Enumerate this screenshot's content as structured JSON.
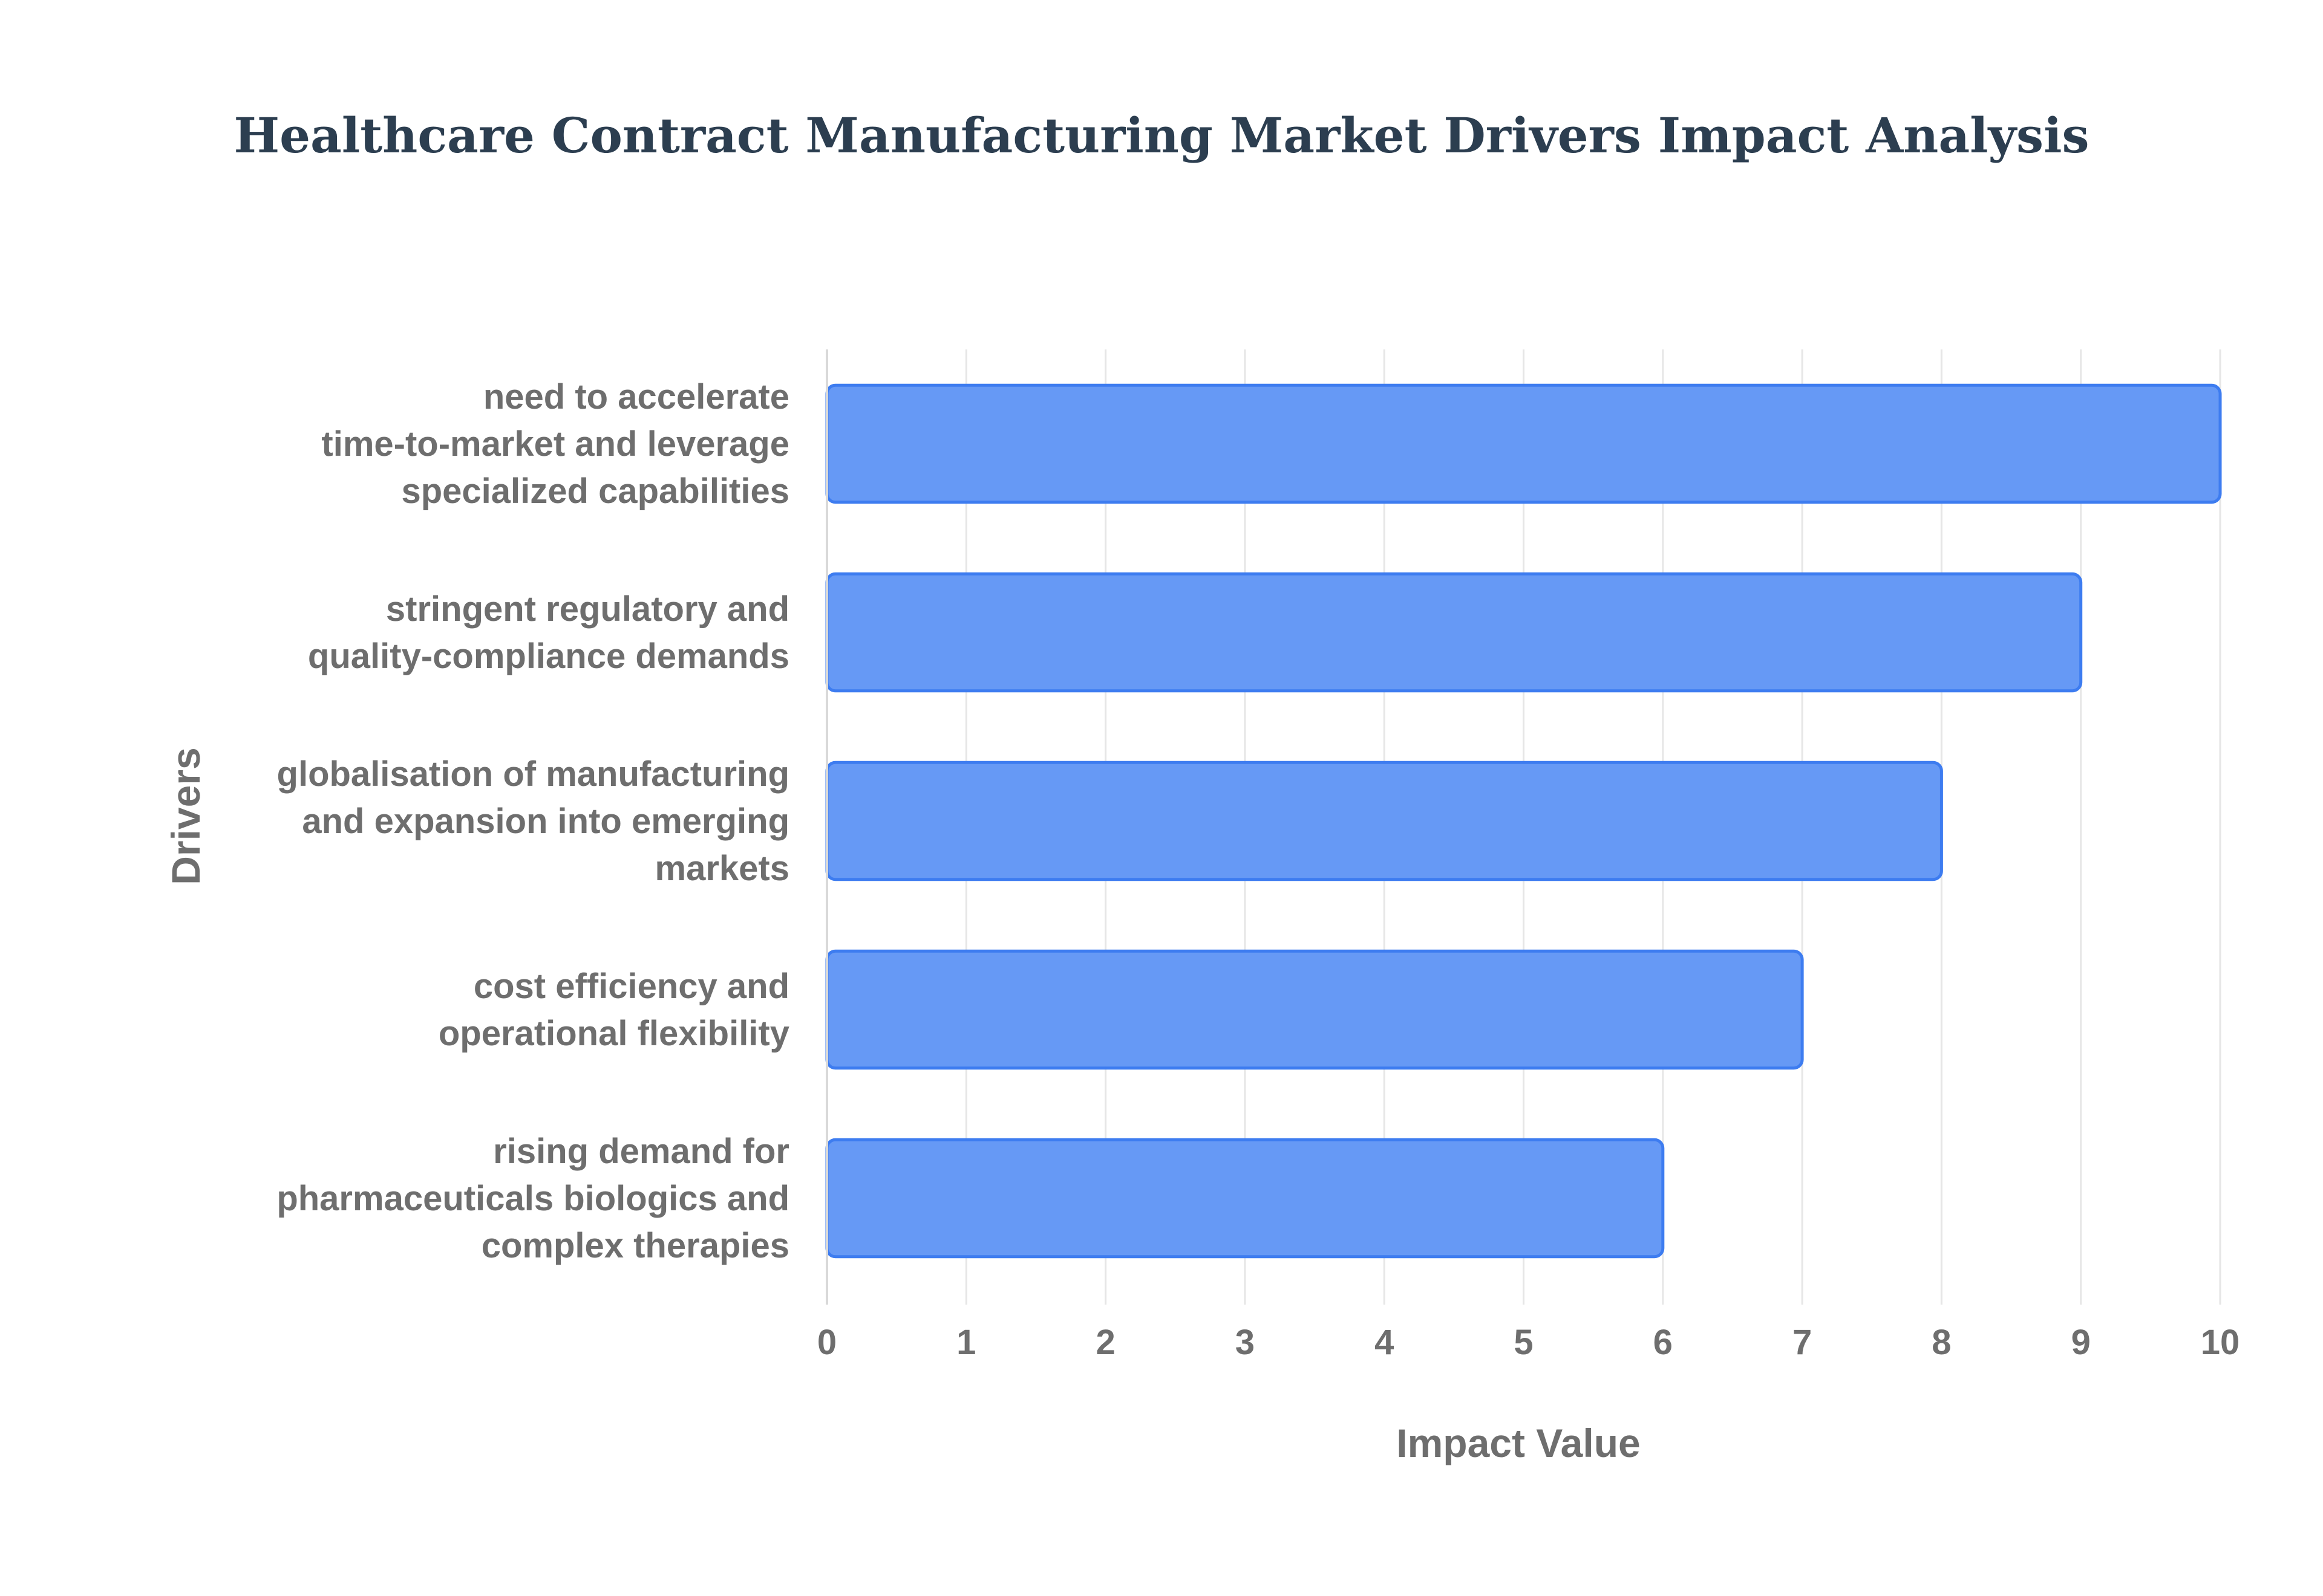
{
  "chart_data": {
    "type": "bar",
    "orientation": "horizontal",
    "title": "Healthcare Contract Manufacturing Market Drivers Impact Analysis",
    "xlabel": "Impact Value",
    "ylabel": "Drivers",
    "xlim": [
      0,
      10
    ],
    "x_ticks": [
      "0",
      "1",
      "2",
      "3",
      "4",
      "5",
      "6",
      "7",
      "8",
      "9",
      "10"
    ],
    "grid": true,
    "legend": "none",
    "bar_color": "#6699f5",
    "bar_border_color": "#3d7cf0",
    "categories": [
      [
        "need to accelerate",
        "time-to-market and leverage",
        "specialized capabilities"
      ],
      [
        "stringent regulatory and",
        "quality-compliance demands"
      ],
      [
        "globalisation of manufacturing",
        "and expansion into emerging",
        "markets"
      ],
      [
        "cost efficiency and",
        "operational flexibility"
      ],
      [
        "rising demand for",
        "pharmaceuticals biologics and",
        "complex therapies"
      ]
    ],
    "values": [
      10,
      9,
      8,
      7,
      6
    ]
  }
}
